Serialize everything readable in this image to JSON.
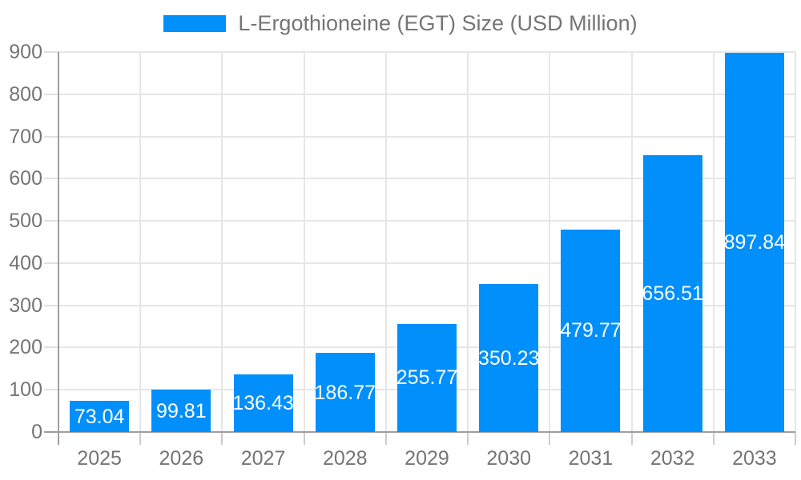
{
  "legend": {
    "label": "L-Ergothioneine (EGT) Size (USD Million)",
    "swatch_color": "#008FFB"
  },
  "chart_data": {
    "type": "bar",
    "title": "L-Ergothioneine (EGT) Size (USD Million)",
    "categories": [
      "2025",
      "2026",
      "2027",
      "2028",
      "2029",
      "2030",
      "2031",
      "2032",
      "2033"
    ],
    "values": [
      73.04,
      99.81,
      136.43,
      186.77,
      255.77,
      350.23,
      479.77,
      656.51,
      897.84
    ],
    "value_labels": [
      "73.04",
      "99.81",
      "136.43",
      "186.77",
      "255.77",
      "350.23",
      "479.77",
      "656.51",
      "897.84"
    ],
    "xlabel": "",
    "ylabel": "",
    "ylim": [
      0,
      900
    ],
    "ytick_step": 100,
    "ytick_labels": [
      "0",
      "100",
      "200",
      "300",
      "400",
      "500",
      "600",
      "700",
      "800",
      "900"
    ],
    "grid": true,
    "legend_position": "top",
    "colors": {
      "bar": "#008FFB",
      "grid": "#e6e6e6",
      "axis": "#9e9e9e",
      "text": "#757575",
      "value_label": "#ffffff",
      "background": "#ffffff"
    }
  }
}
